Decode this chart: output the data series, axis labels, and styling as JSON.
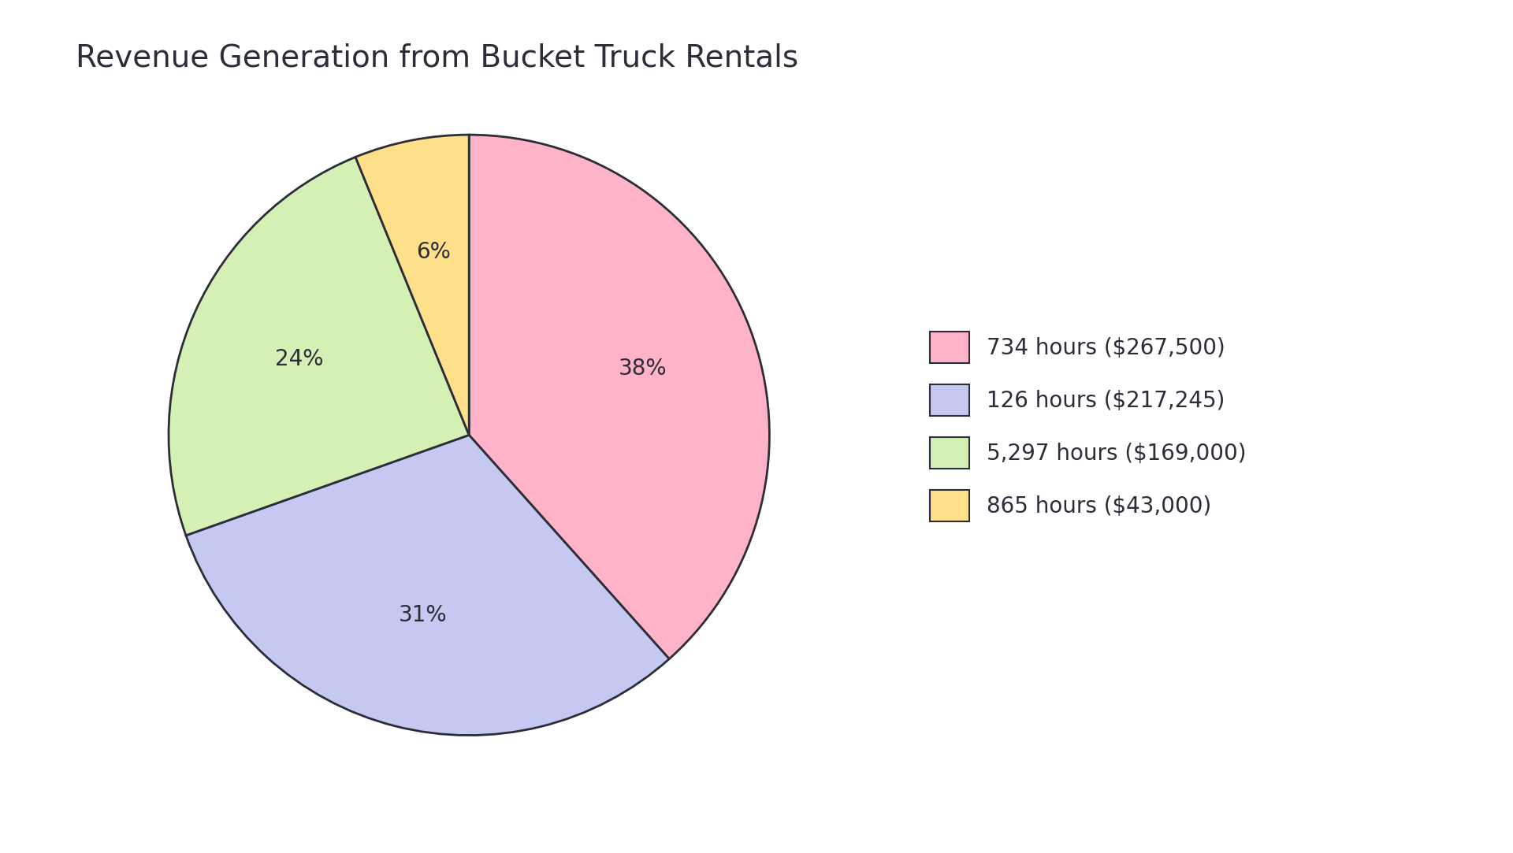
{
  "title": "Revenue Generation from Bucket Truck Rentals",
  "slices": [
    267500,
    217245,
    169000,
    43000
  ],
  "labels": [
    "734 hours ($267,500)",
    "126 hours ($217,245)",
    "5,297 hours ($169,000)",
    "865 hours ($43,000)"
  ],
  "colors": [
    "#FFB3C8",
    "#C5C8F0",
    "#D4F0B4",
    "#FFE08A"
  ],
  "edge_color": "#2D2D3A",
  "autopct_labels": [
    "38%",
    "31%",
    "24%",
    "6%"
  ],
  "startangle": 90,
  "title_fontsize": 28,
  "label_fontsize": 20,
  "legend_fontsize": 20,
  "background_color": "#FFFFFF",
  "text_color": "#2D2D3A"
}
